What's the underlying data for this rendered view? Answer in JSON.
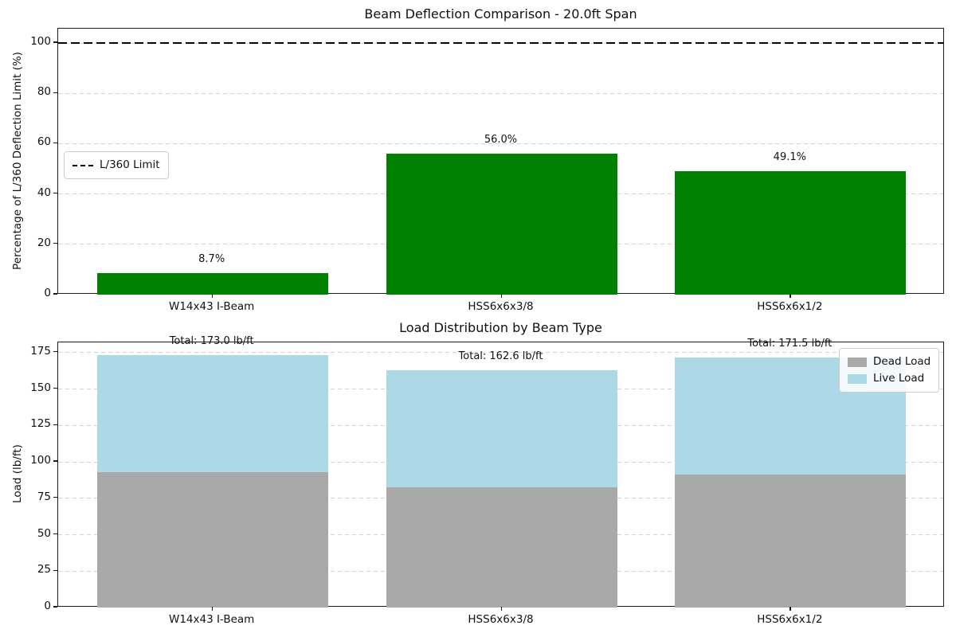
{
  "colors": {
    "bar_green": "#008000",
    "dead_load": "#a9a9a9",
    "live_load": "#add8e6",
    "reference_line": "#000000",
    "grid": "#d3d3d3",
    "text": "#000000",
    "background": "#ffffff"
  },
  "chart_data": [
    {
      "type": "bar",
      "title": "Beam Deflection Comparison - 20.0ft Span",
      "ylabel": "Percentage of L/360 Deflection Limit (%)",
      "xlabel": "",
      "categories": [
        "W14x43 I-Beam",
        "HSS6x6x3/8",
        "HSS6x6x1/2"
      ],
      "values": [
        8.7,
        56.0,
        49.1
      ],
      "bar_labels": [
        "8.7%",
        "56.0%",
        "49.1%"
      ],
      "bar_color_name": "bar_green",
      "yticks": [
        0,
        20,
        40,
        60,
        80,
        100
      ],
      "ylim": [
        0,
        105.7
      ],
      "grid": "horizontal-dashed",
      "reference_line": {
        "value": 100,
        "style": "dashed",
        "legend_label": "L/360 Limit"
      },
      "legend_position": "center-left"
    },
    {
      "type": "stacked-bar",
      "title": "Load Distribution by Beam Type",
      "ylabel": "Load (lb/ft)",
      "xlabel": "",
      "categories": [
        "W14x43 I-Beam",
        "HSS6x6x3/8",
        "HSS6x6x1/2"
      ],
      "series": [
        {
          "name": "Dead Load",
          "color_name": "dead_load",
          "values": [
            93.0,
            82.6,
            91.5
          ]
        },
        {
          "name": "Live Load",
          "color_name": "live_load",
          "values": [
            80.0,
            80.0,
            80.0
          ]
        }
      ],
      "totals": [
        173.0,
        162.6,
        171.5
      ],
      "total_labels": [
        "Total: 173.0 lb/ft",
        "Total: 162.6 lb/ft",
        "Total: 171.5 lb/ft"
      ],
      "yticks": [
        0,
        25,
        50,
        75,
        100,
        125,
        150,
        175
      ],
      "ylim": [
        0,
        182
      ],
      "grid": "horizontal-dashed",
      "legend_position": "upper-right"
    }
  ]
}
